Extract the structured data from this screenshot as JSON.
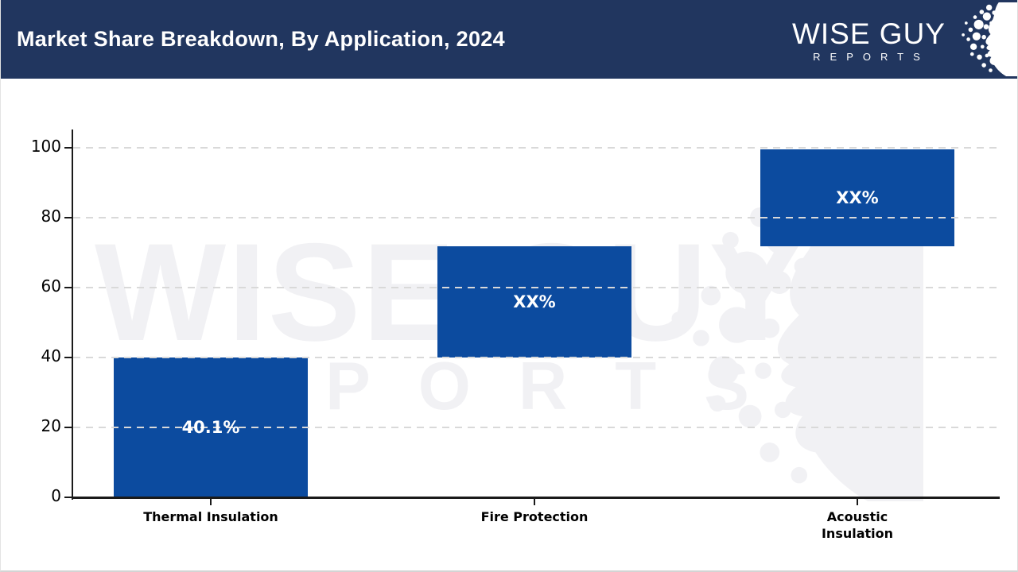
{
  "header": {
    "title": "Market Share Breakdown, By Application, 2024",
    "background_color": "#21365f",
    "logo": {
      "wordmark": "WISE GUY",
      "subtext": "REPORTS",
      "face_icon": "face-profile-dots-icon"
    }
  },
  "watermark": {
    "line1": "WISE GUY",
    "line2": "REPORTS"
  },
  "chart_data": {
    "type": "bar",
    "subtype": "floating-waterfall-breakdown",
    "title": "Market Share Breakdown, By Application, 2024",
    "categories": [
      "Thermal Insulation",
      "Fire Protection",
      "Acoustic\nInsulation"
    ],
    "bars": [
      {
        "category": "Thermal Insulation",
        "start": 0,
        "end": 40.1,
        "label": "40.1%"
      },
      {
        "category": "Fire Protection",
        "start": 40.1,
        "end": 71.8,
        "label": "XX%"
      },
      {
        "category": "Acoustic Insulation",
        "start": 71.8,
        "end": 99.5,
        "label": "XX%"
      }
    ],
    "xlabel": "",
    "ylabel": "",
    "yticks": [
      0,
      20,
      40,
      60,
      80,
      100
    ],
    "ylim": [
      0,
      105
    ],
    "grid": "dashed-horizontal",
    "grid_color": "#d9d9d9",
    "legend": "none",
    "bar_color": "#0c4b9f",
    "bar_label_color": "#ffffff",
    "axis_color": "#1a1a1a"
  }
}
